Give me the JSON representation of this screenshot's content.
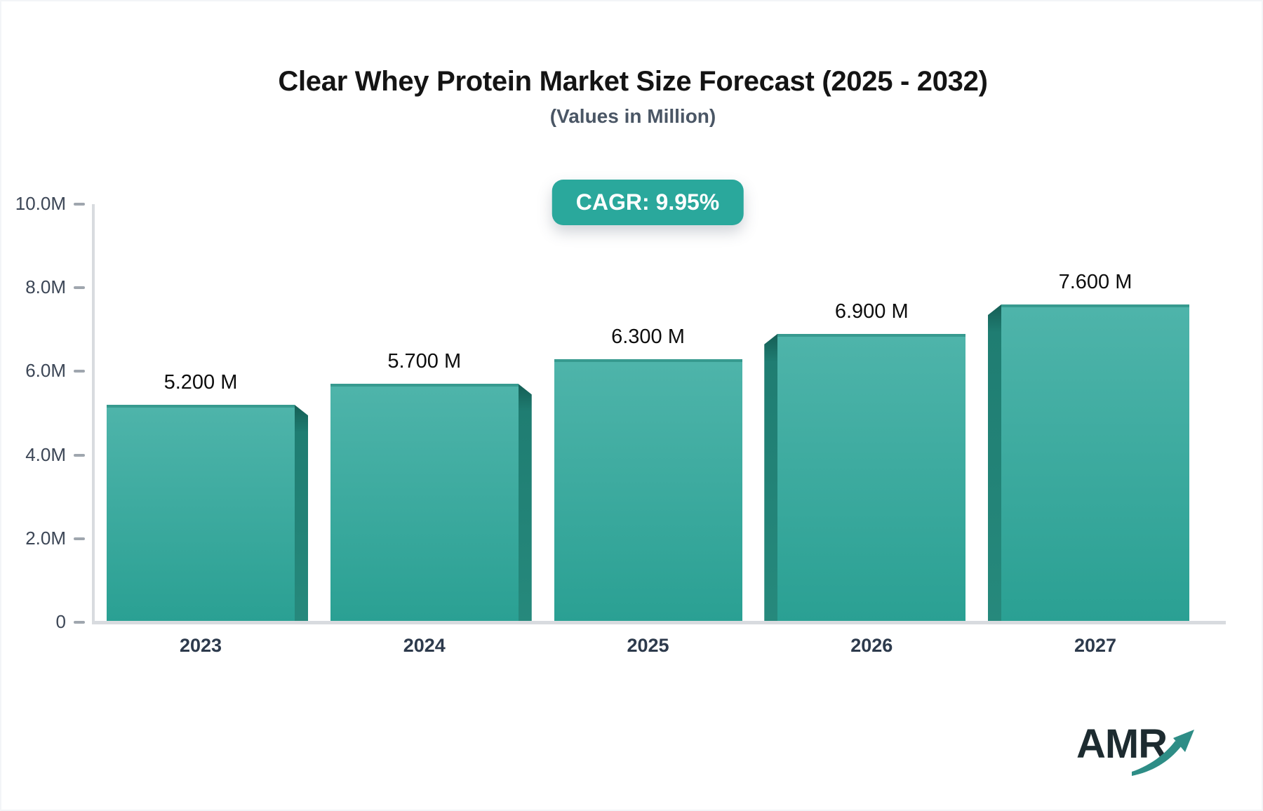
{
  "title": "Clear Whey Protein Market Size Forecast (2025 - 2032)",
  "subtitle": "(Values in Million)",
  "cagr_badge": "CAGR: 9.95%",
  "logo": {
    "text": "AMR"
  },
  "colors": {
    "bar_top": "#4eb4aa",
    "bar_bottom": "#2aa093",
    "bar_side": "#1f7d72",
    "bar_side_dark": "#155e55",
    "badge_bg": "#2aa89c",
    "axis_line": "#d8dbdf",
    "tick_mark": "#9fa6ae",
    "ytick_text": "#3c4656",
    "category_text": "#2d3a4c",
    "value_text": "#0d0d0d",
    "logo_text": "#1d2b30",
    "logo_arrow": "#2e8d86"
  },
  "chart_data": {
    "type": "bar",
    "title": "Clear Whey Protein Market Size Forecast (2025 - 2032)",
    "subtitle": "(Values in Million)",
    "unit": "Million",
    "cagr": "9.95%",
    "categories": [
      "2023",
      "2024",
      "2025",
      "2026",
      "2027"
    ],
    "values": [
      5.2,
      5.7,
      6.3,
      6.9,
      7.6
    ],
    "value_labels": [
      "5.200 M",
      "5.700 M",
      "6.300 M",
      "6.900 M",
      "7.600 M"
    ],
    "ylim": [
      0,
      10
    ],
    "yticks": [
      {
        "value": 10,
        "label": "10.0M"
      },
      {
        "value": 8,
        "label": "8.0M"
      },
      {
        "value": 6,
        "label": "6.0M"
      },
      {
        "value": 4,
        "label": "4.0M"
      },
      {
        "value": 2,
        "label": "2.0M"
      },
      {
        "value": 0,
        "label": "0"
      }
    ],
    "grid": false,
    "legend": false,
    "style": "3d-bars-perspective"
  }
}
